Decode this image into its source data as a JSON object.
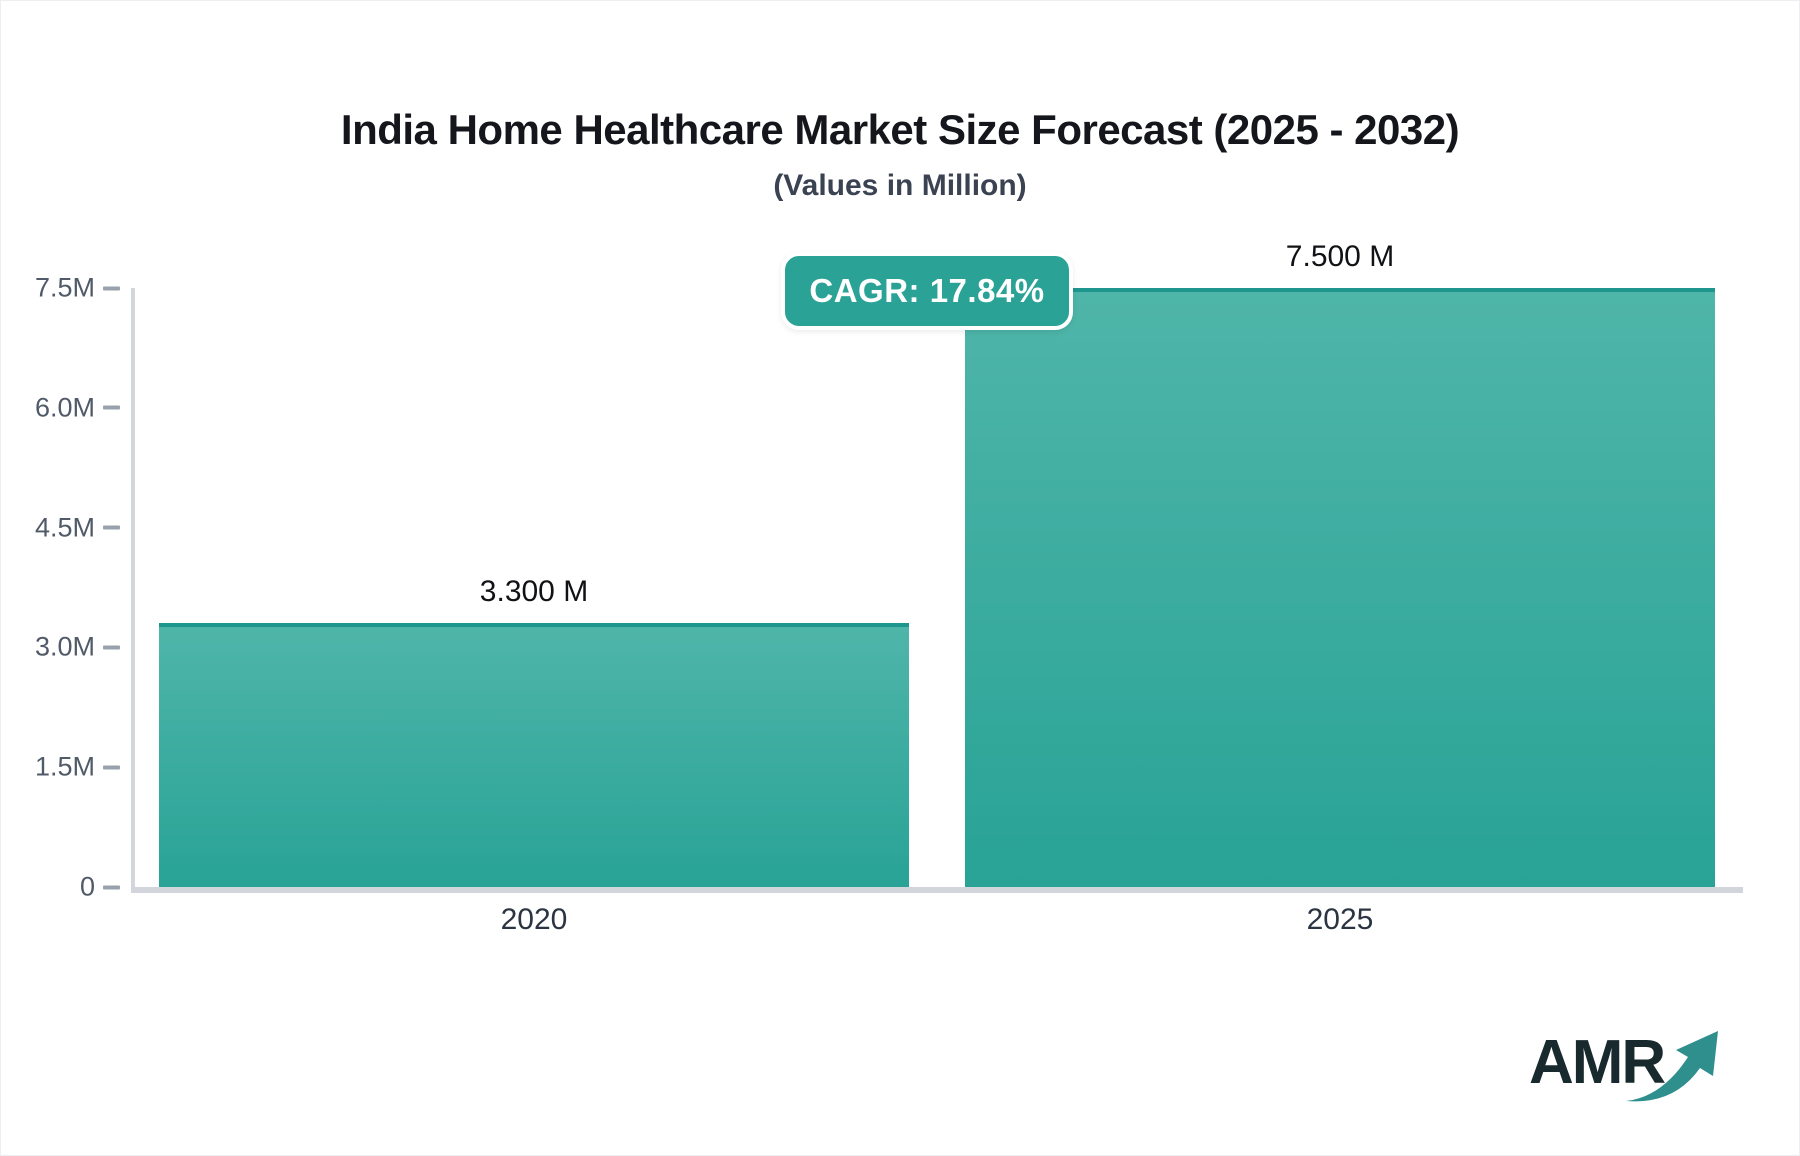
{
  "header": {
    "title": "India Home Healthcare Market Size Forecast (2025 - 2032)",
    "subtitle": "(Values in Million)"
  },
  "badge": {
    "cagr_label": "CAGR: 17.84%"
  },
  "chart_data": {
    "type": "bar",
    "title": "India Home Healthcare Market Size Forecast (2025 - 2032)",
    "subtitle": "(Values in Million)",
    "categories": [
      "2020",
      "2025"
    ],
    "values": [
      3.3,
      7.5
    ],
    "value_labels": [
      "3.300 M",
      "7.500 M"
    ],
    "xlabel": "",
    "ylabel": "",
    "ylim": [
      0,
      7.5
    ],
    "yticks": [
      {
        "label": "0",
        "value": 0
      },
      {
        "label": "1.5M",
        "value": 1.5
      },
      {
        "label": "3.0M",
        "value": 3.0
      },
      {
        "label": "4.5M",
        "value": 4.5
      },
      {
        "label": "6.0M",
        "value": 6.0
      },
      {
        "label": "7.5M",
        "value": 7.5
      }
    ],
    "grid": false,
    "legend": false,
    "annotations": [
      "CAGR: 17.84%"
    ]
  },
  "colors": {
    "bar_gradient_top": "#4fb5a9",
    "bar_gradient_bottom": "#28a396",
    "bar_top_edge": "#1f968d",
    "badge_bg": "#2aa396",
    "axis_line": "#d3d6dd",
    "tick_mark": "#99a1ac",
    "tick_text": "#515a68",
    "title_text": "#14161c",
    "logo_arrow": "#2e8f8d",
    "logo_text": "#182a2d"
  },
  "logo": {
    "text": "AMR"
  }
}
